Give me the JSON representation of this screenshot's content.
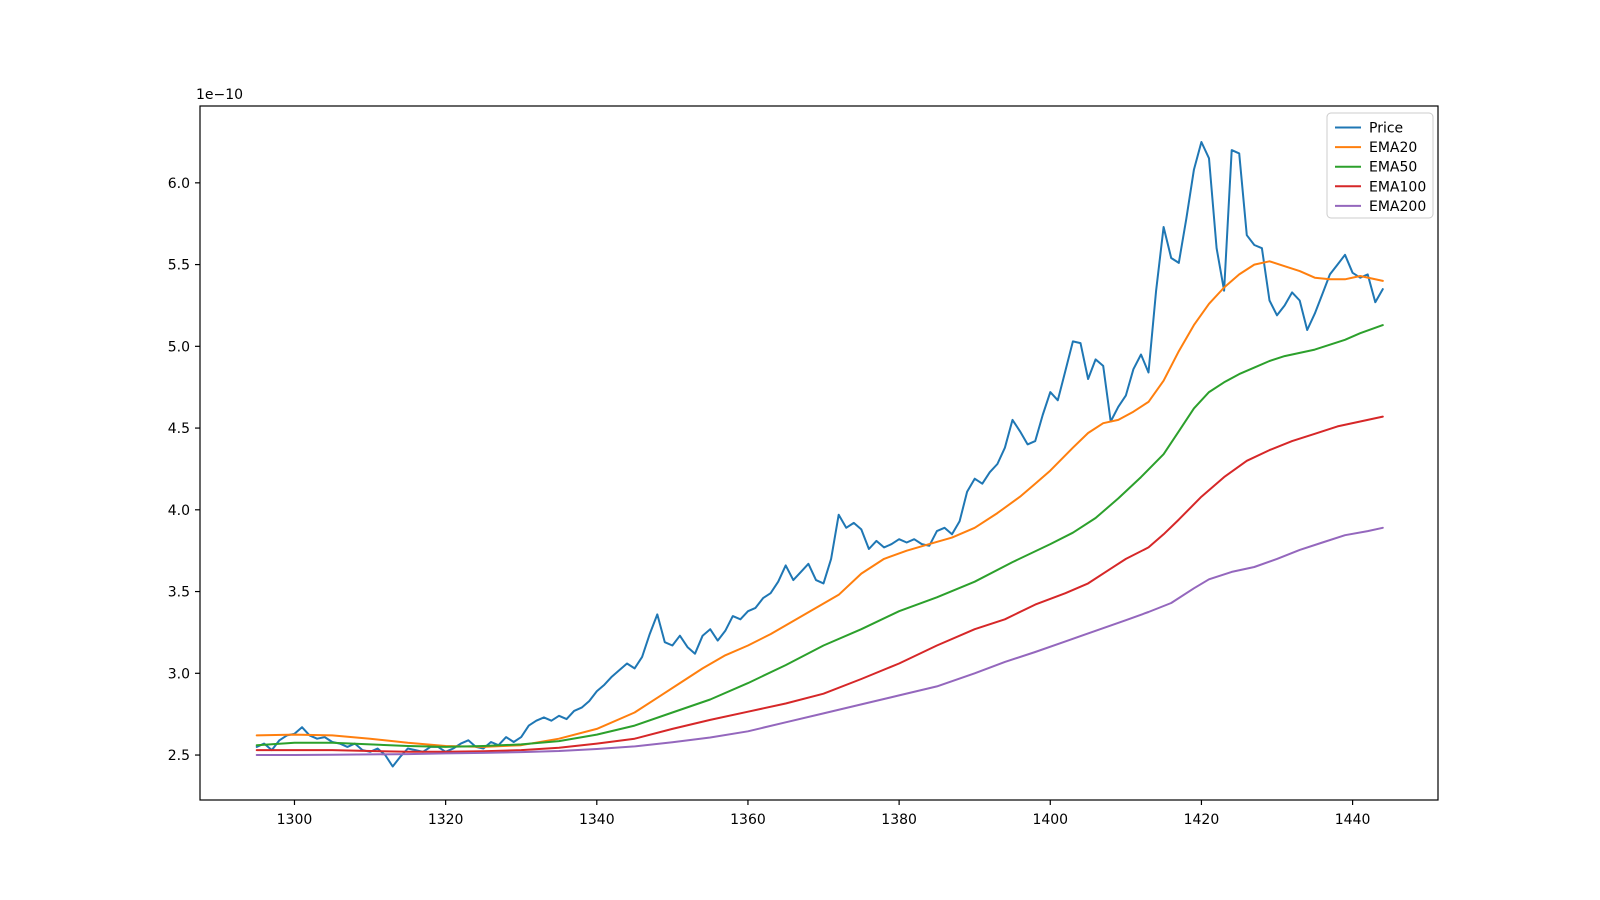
{
  "figure": {
    "background": "#ffffff"
  },
  "chart_data": {
    "type": "line",
    "title": "",
    "xlabel": "",
    "ylabel": "",
    "offset_label": "1e−10",
    "grid": false,
    "xlim": [
      1287.5,
      1451.3
    ],
    "ylim": [
      2.225,
      6.47
    ],
    "x_ticks": [
      1300,
      1320,
      1340,
      1360,
      1380,
      1400,
      1420,
      1440
    ],
    "y_ticks": [
      2.5,
      3.0,
      3.5,
      4.0,
      4.5,
      5.0,
      5.5,
      6.0
    ],
    "y_tick_labels": [
      "2.5",
      "3.0",
      "3.5",
      "4.0",
      "4.5",
      "5.0",
      "5.5",
      "6.0"
    ],
    "value_unit": "1e-10",
    "legend": {
      "position": "upper right",
      "entries": [
        "Price",
        "EMA20",
        "EMA50",
        "EMA100",
        "EMA200"
      ]
    },
    "series": [
      {
        "name": "Price",
        "color": "#1f77b4",
        "x_start": 1295,
        "x_step": 1,
        "y": [
          2.55,
          2.57,
          2.53,
          2.59,
          2.62,
          2.63,
          2.67,
          2.62,
          2.6,
          2.61,
          2.58,
          2.57,
          2.55,
          2.57,
          2.53,
          2.52,
          2.54,
          2.5,
          2.43,
          2.49,
          2.54,
          2.53,
          2.52,
          2.55,
          2.55,
          2.52,
          2.54,
          2.57,
          2.59,
          2.55,
          2.54,
          2.58,
          2.56,
          2.61,
          2.58,
          2.61,
          2.68,
          2.71,
          2.73,
          2.71,
          2.74,
          2.72,
          2.77,
          2.79,
          2.83,
          2.89,
          2.93,
          2.98,
          3.02,
          3.06,
          3.03,
          3.1,
          3.24,
          3.36,
          3.19,
          3.17,
          3.23,
          3.16,
          3.12,
          3.23,
          3.27,
          3.2,
          3.26,
          3.35,
          3.33,
          3.38,
          3.4,
          3.46,
          3.49,
          3.56,
          3.66,
          3.57,
          3.62,
          3.67,
          3.57,
          3.55,
          3.7,
          3.97,
          3.89,
          3.92,
          3.88,
          3.76,
          3.81,
          3.77,
          3.79,
          3.82,
          3.8,
          3.82,
          3.79,
          3.78,
          3.87,
          3.89,
          3.85,
          3.93,
          4.11,
          4.19,
          4.16,
          4.23,
          4.28,
          4.38,
          4.55,
          4.48,
          4.4,
          4.42,
          4.58,
          4.72,
          4.67,
          4.85,
          5.03,
          5.02,
          4.8,
          4.92,
          4.88,
          4.54,
          4.63,
          4.7,
          4.86,
          4.95,
          4.84,
          5.34,
          5.73,
          5.54,
          5.51,
          5.78,
          6.08,
          6.25,
          6.15,
          5.6,
          5.34,
          6.2,
          6.18,
          5.68,
          5.62,
          5.6,
          5.28,
          5.19,
          5.25,
          5.33,
          5.28,
          5.1,
          5.2,
          5.32,
          5.44,
          5.5,
          5.56,
          5.45,
          5.42,
          5.44,
          5.27,
          5.35
        ]
      },
      {
        "name": "EMA20",
        "color": "#ff7f0e",
        "points": [
          [
            1295,
            2.62
          ],
          [
            1300,
            2.625
          ],
          [
            1305,
            2.62
          ],
          [
            1310,
            2.6
          ],
          [
            1315,
            2.575
          ],
          [
            1320,
            2.555
          ],
          [
            1325,
            2.55
          ],
          [
            1330,
            2.56
          ],
          [
            1335,
            2.6
          ],
          [
            1340,
            2.66
          ],
          [
            1345,
            2.76
          ],
          [
            1348,
            2.85
          ],
          [
            1351,
            2.94
          ],
          [
            1354,
            3.03
          ],
          [
            1357,
            3.11
          ],
          [
            1360,
            3.17
          ],
          [
            1363,
            3.24
          ],
          [
            1366,
            3.32
          ],
          [
            1369,
            3.4
          ],
          [
            1372,
            3.48
          ],
          [
            1375,
            3.61
          ],
          [
            1378,
            3.7
          ],
          [
            1381,
            3.75
          ],
          [
            1384,
            3.79
          ],
          [
            1387,
            3.83
          ],
          [
            1390,
            3.89
          ],
          [
            1393,
            3.98
          ],
          [
            1396,
            4.08
          ],
          [
            1398,
            4.16
          ],
          [
            1400,
            4.24
          ],
          [
            1403,
            4.38
          ],
          [
            1405,
            4.47
          ],
          [
            1407,
            4.53
          ],
          [
            1409,
            4.55
          ],
          [
            1411,
            4.6
          ],
          [
            1413,
            4.66
          ],
          [
            1415,
            4.79
          ],
          [
            1417,
            4.97
          ],
          [
            1419,
            5.13
          ],
          [
            1421,
            5.26
          ],
          [
            1423,
            5.36
          ],
          [
            1425,
            5.44
          ],
          [
            1427,
            5.5
          ],
          [
            1429,
            5.52
          ],
          [
            1431,
            5.49
          ],
          [
            1433,
            5.46
          ],
          [
            1435,
            5.42
          ],
          [
            1437,
            5.41
          ],
          [
            1439,
            5.41
          ],
          [
            1441,
            5.43
          ],
          [
            1444,
            5.4
          ]
        ]
      },
      {
        "name": "EMA50",
        "color": "#2ca02c",
        "points": [
          [
            1295,
            2.56
          ],
          [
            1300,
            2.575
          ],
          [
            1305,
            2.575
          ],
          [
            1310,
            2.565
          ],
          [
            1315,
            2.555
          ],
          [
            1320,
            2.55
          ],
          [
            1325,
            2.555
          ],
          [
            1330,
            2.565
          ],
          [
            1335,
            2.585
          ],
          [
            1340,
            2.625
          ],
          [
            1345,
            2.68
          ],
          [
            1350,
            2.76
          ],
          [
            1355,
            2.84
          ],
          [
            1360,
            2.94
          ],
          [
            1365,
            3.05
          ],
          [
            1370,
            3.17
          ],
          [
            1375,
            3.27
          ],
          [
            1380,
            3.38
          ],
          [
            1385,
            3.465
          ],
          [
            1390,
            3.56
          ],
          [
            1395,
            3.68
          ],
          [
            1400,
            3.79
          ],
          [
            1403,
            3.86
          ],
          [
            1406,
            3.95
          ],
          [
            1409,
            4.07
          ],
          [
            1412,
            4.2
          ],
          [
            1415,
            4.34
          ],
          [
            1417,
            4.48
          ],
          [
            1419,
            4.62
          ],
          [
            1421,
            4.72
          ],
          [
            1423,
            4.78
          ],
          [
            1425,
            4.83
          ],
          [
            1427,
            4.87
          ],
          [
            1429,
            4.91
          ],
          [
            1431,
            4.94
          ],
          [
            1433,
            4.96
          ],
          [
            1435,
            4.98
          ],
          [
            1437,
            5.01
          ],
          [
            1439,
            5.04
          ],
          [
            1441,
            5.08
          ],
          [
            1444,
            5.13
          ]
        ]
      },
      {
        "name": "EMA100",
        "color": "#d62728",
        "points": [
          [
            1295,
            2.53
          ],
          [
            1300,
            2.53
          ],
          [
            1305,
            2.53
          ],
          [
            1310,
            2.525
          ],
          [
            1315,
            2.52
          ],
          [
            1320,
            2.52
          ],
          [
            1325,
            2.523
          ],
          [
            1330,
            2.53
          ],
          [
            1335,
            2.545
          ],
          [
            1340,
            2.57
          ],
          [
            1345,
            2.6
          ],
          [
            1350,
            2.66
          ],
          [
            1355,
            2.715
          ],
          [
            1360,
            2.765
          ],
          [
            1365,
            2.815
          ],
          [
            1370,
            2.875
          ],
          [
            1375,
            2.965
          ],
          [
            1380,
            3.06
          ],
          [
            1385,
            3.17
          ],
          [
            1390,
            3.27
          ],
          [
            1394,
            3.33
          ],
          [
            1398,
            3.42
          ],
          [
            1402,
            3.49
          ],
          [
            1405,
            3.55
          ],
          [
            1408,
            3.64
          ],
          [
            1410,
            3.7
          ],
          [
            1413,
            3.77
          ],
          [
            1415,
            3.85
          ],
          [
            1417,
            3.94
          ],
          [
            1420,
            4.08
          ],
          [
            1423,
            4.2
          ],
          [
            1426,
            4.3
          ],
          [
            1429,
            4.365
          ],
          [
            1432,
            4.42
          ],
          [
            1435,
            4.465
          ],
          [
            1438,
            4.51
          ],
          [
            1441,
            4.54
          ],
          [
            1444,
            4.57
          ]
        ]
      },
      {
        "name": "EMA200",
        "color": "#9467bd",
        "points": [
          [
            1295,
            2.5
          ],
          [
            1300,
            2.5
          ],
          [
            1305,
            2.502
          ],
          [
            1310,
            2.504
          ],
          [
            1315,
            2.506
          ],
          [
            1320,
            2.51
          ],
          [
            1325,
            2.513
          ],
          [
            1330,
            2.518
          ],
          [
            1335,
            2.525
          ],
          [
            1340,
            2.537
          ],
          [
            1345,
            2.553
          ],
          [
            1350,
            2.578
          ],
          [
            1355,
            2.607
          ],
          [
            1360,
            2.645
          ],
          [
            1365,
            2.7
          ],
          [
            1370,
            2.755
          ],
          [
            1375,
            2.81
          ],
          [
            1380,
            2.865
          ],
          [
            1385,
            2.92
          ],
          [
            1390,
            3.0
          ],
          [
            1394,
            3.07
          ],
          [
            1398,
            3.13
          ],
          [
            1402,
            3.195
          ],
          [
            1406,
            3.26
          ],
          [
            1410,
            3.325
          ],
          [
            1413,
            3.375
          ],
          [
            1416,
            3.43
          ],
          [
            1419,
            3.52
          ],
          [
            1421,
            3.575
          ],
          [
            1424,
            3.62
          ],
          [
            1427,
            3.65
          ],
          [
            1430,
            3.7
          ],
          [
            1433,
            3.755
          ],
          [
            1436,
            3.8
          ],
          [
            1439,
            3.845
          ],
          [
            1442,
            3.87
          ],
          [
            1444,
            3.89
          ]
        ]
      }
    ]
  }
}
